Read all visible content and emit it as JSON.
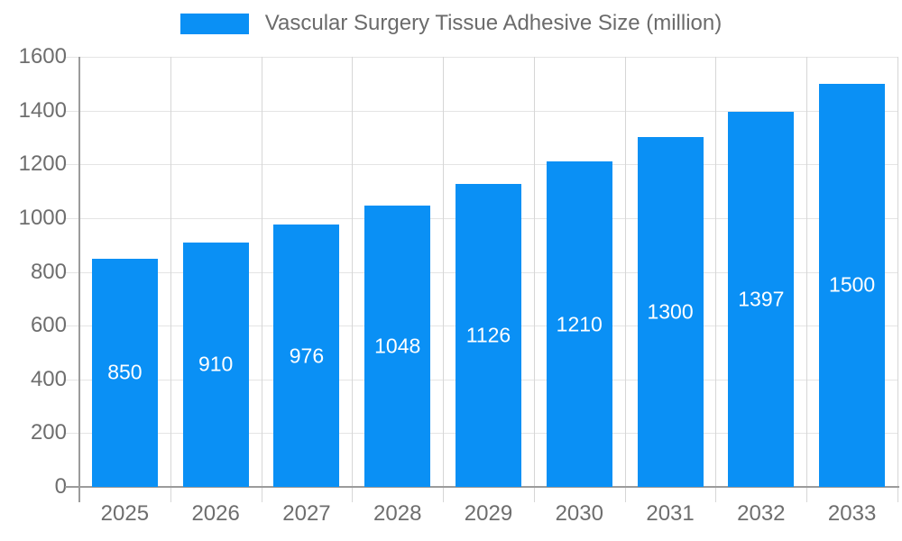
{
  "chart_data": {
    "type": "bar",
    "title": "Vascular Surgery Tissue Adhesive Size (million)",
    "xlabel": "",
    "ylabel": "",
    "categories": [
      "2025",
      "2026",
      "2027",
      "2028",
      "2029",
      "2030",
      "2031",
      "2032",
      "2033"
    ],
    "values": [
      850,
      910,
      976,
      1048,
      1126,
      1210,
      1300,
      1397,
      1500
    ],
    "value_labels": [
      "850",
      "910",
      "976",
      "1048",
      "1126",
      "1210",
      "1300",
      "1397",
      "1500"
    ],
    "ylim": [
      0,
      1600
    ],
    "yticks": [
      0,
      200,
      400,
      600,
      800,
      1000,
      1200,
      1400,
      1600
    ],
    "grid": true,
    "legend_position": "top",
    "legend": {
      "entries": [
        {
          "label": "Vascular Surgery Tissue Adhesive Size (million)",
          "color": "#0a90f5"
        }
      ]
    },
    "colors": {
      "bar": "#0a90f5",
      "value_label_text": "#ffffff",
      "axis_line": "#9b9b9b",
      "gridline_horizontal": "#e4e4e4",
      "gridline_vertical": "#d6d6d6",
      "tick_label_text": "#6e6e6e",
      "legend_text": "#6b6b6b",
      "background": "#ffffff"
    }
  }
}
